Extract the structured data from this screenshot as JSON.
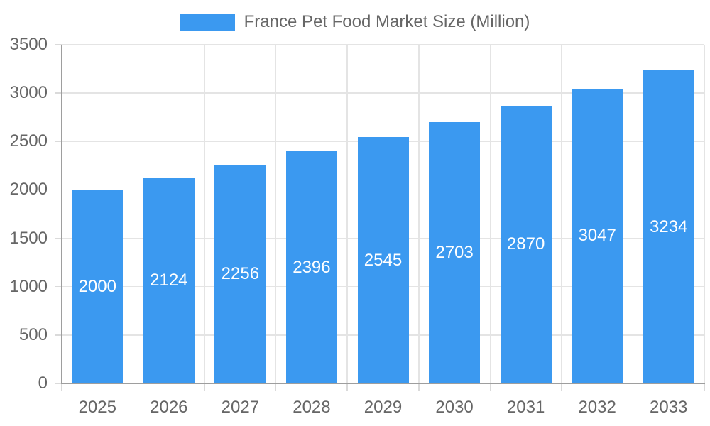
{
  "chart_data": {
    "type": "bar",
    "title": "France Pet Food Market Size (Million)",
    "categories": [
      "2025",
      "2026",
      "2027",
      "2028",
      "2029",
      "2030",
      "2031",
      "2032",
      "2033"
    ],
    "series": [
      {
        "name": "France Pet Food Market Size (Million)",
        "values": [
          2000,
          2124,
          2256,
          2396,
          2545,
          2703,
          2870,
          3047,
          3234
        ],
        "color": "#3B99F0"
      }
    ],
    "xlabel": "",
    "ylabel": "",
    "ylim": [
      0,
      3500
    ],
    "yticks": [
      0,
      500,
      1000,
      1500,
      2000,
      2500,
      3000,
      3500
    ],
    "grid": true,
    "legend_position": "top-center",
    "value_labels": {
      "visible": true,
      "position": "inside-center",
      "color": "#FFFFFF"
    }
  },
  "colors": {
    "bar": "#3B99F0",
    "axis_line": "#9E9E9E",
    "grid_line": "#E4E4E4",
    "tick_mark": "#DADADA",
    "tick_text": "#666666",
    "legend_text": "#666666",
    "value_label": "#FFFFFF",
    "background": "#FFFFFF"
  }
}
